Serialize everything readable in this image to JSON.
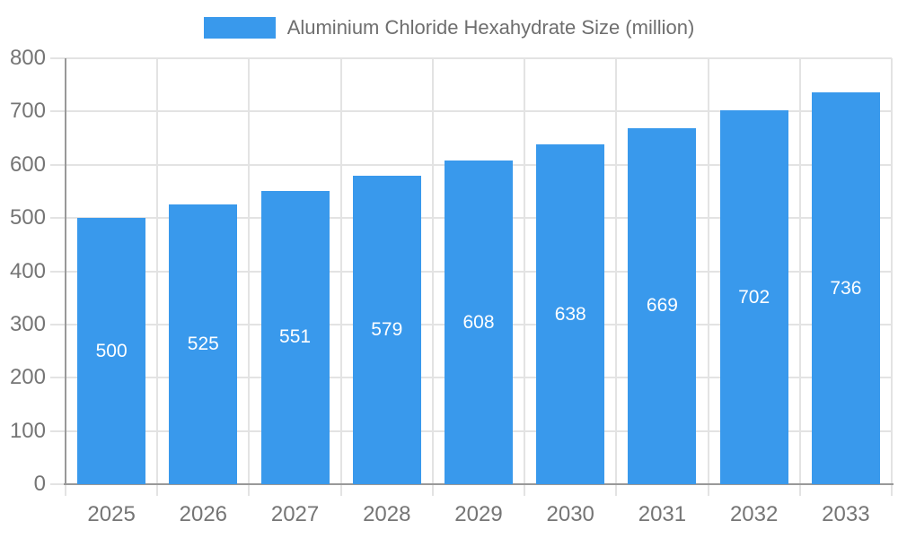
{
  "legend": {
    "label": "Aluminium Chloride Hexahydrate Size (million)"
  },
  "chart_data": {
    "type": "bar",
    "title": "Aluminium Chloride Hexahydrate Size (million)",
    "categories": [
      "2025",
      "2026",
      "2027",
      "2028",
      "2029",
      "2030",
      "2031",
      "2032",
      "2033"
    ],
    "values": [
      500,
      525,
      551,
      579,
      608,
      638,
      669,
      702,
      736
    ],
    "xlabel": "",
    "ylabel": "",
    "ylim": [
      0,
      800
    ],
    "y_ticks": [
      0,
      100,
      200,
      300,
      400,
      500,
      600,
      700,
      800
    ],
    "grid": true,
    "legend_position": "top-center",
    "value_labels": "inside-middle",
    "colors": {
      "bar": "#3999EC",
      "axis": "#999999",
      "gridline": "#E3E3E3",
      "tick_label": "#757575",
      "legend_text": "#6E6E6E",
      "value_label": "#FFFFFF",
      "background": "#FFFFFF"
    }
  }
}
